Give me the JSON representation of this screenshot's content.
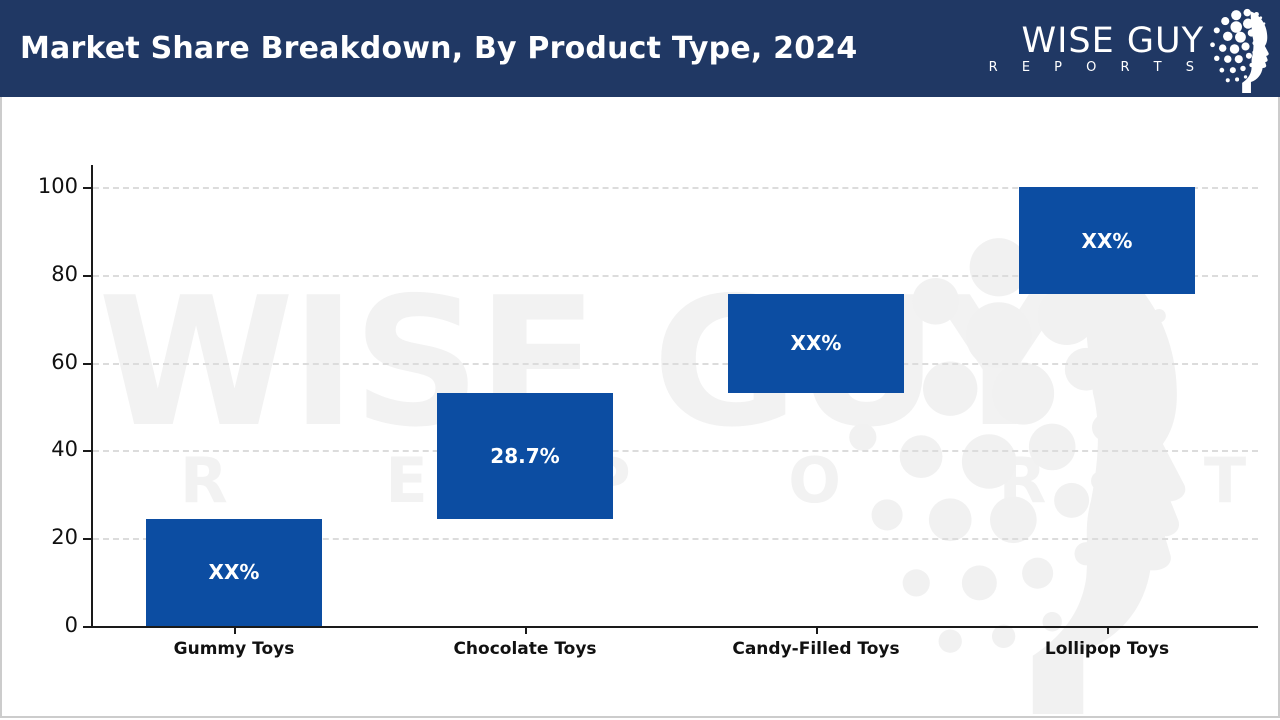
{
  "header": {
    "title": "Market Share Breakdown, By Product Type, 2024",
    "logo": {
      "line1": "WISE GUY",
      "line2": "R E P O R T S"
    }
  },
  "watermark": {
    "line1": "WISE GUY",
    "line2": "R E P O R T S"
  },
  "chart_data": {
    "type": "bar",
    "subtype": "floating-waterfall-bars",
    "title": "Market Share Breakdown, By Product Type, 2024",
    "categories": [
      "Gummy Toys",
      "Chocolate Toys",
      "Candy-Filled Toys",
      "Lollipop Toys"
    ],
    "bars": [
      {
        "category": "Gummy Toys",
        "start": 0,
        "end": 24.4,
        "label": "XX%"
      },
      {
        "category": "Chocolate Toys",
        "start": 24.4,
        "end": 53.1,
        "label": "28.7%"
      },
      {
        "category": "Candy-Filled Toys",
        "start": 53.1,
        "end": 75.6,
        "label": "XX%"
      },
      {
        "category": "Lollipop Toys",
        "start": 75.6,
        "end": 100,
        "label": "XX%"
      }
    ],
    "xlabel": "",
    "ylabel": "",
    "yticks": [
      0,
      20,
      40,
      60,
      80,
      100
    ],
    "ylim": [
      0,
      105
    ],
    "grid": "horizontal-dashed",
    "legend": "none",
    "bar_color": "#0c4da2",
    "bar_label_color": "#ffffff"
  },
  "colors": {
    "header_bg": "#203864",
    "bar": "#0c4da2",
    "grid": "#dcdcdc",
    "axis": "#1a1a1a",
    "text": "#111111",
    "watermark": "#f2f2f2",
    "frame": "#cccccc"
  }
}
